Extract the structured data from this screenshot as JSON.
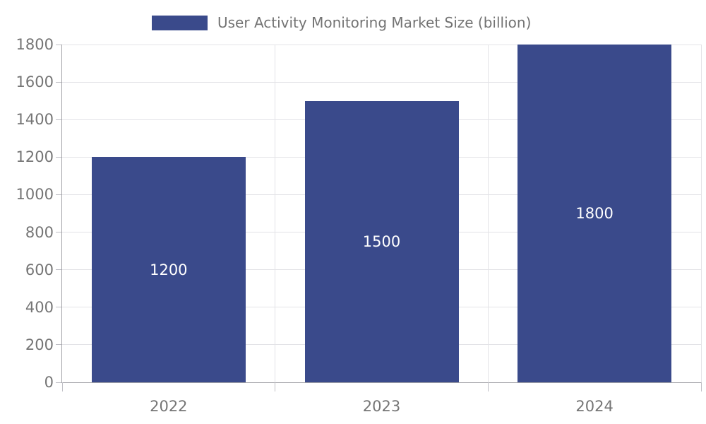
{
  "legend": {
    "label": "User Activity Monitoring Market Size (billion)"
  },
  "chart_data": {
    "type": "bar",
    "title": "User Activity Monitoring Market Size (billion)",
    "categories": [
      "2022",
      "2023",
      "2024"
    ],
    "values": [
      1200,
      1500,
      1800
    ],
    "value_labels": [
      "1200",
      "1500",
      "1800"
    ],
    "value_label_position": "inside-center",
    "xlabel": "",
    "ylabel": "",
    "ylim": [
      0,
      1800
    ],
    "yticks": [
      0,
      200,
      400,
      600,
      800,
      1000,
      1200,
      1400,
      1600,
      1800
    ],
    "grid": true,
    "legend_position": "top-center"
  },
  "colors": {
    "bar": "#3A4A8B",
    "grid": "#E3E3E7",
    "spine": "#A3A3A8",
    "tick": "#BFBFC5",
    "axis_text": "#757575",
    "legend_text": "#737373",
    "value_text": "#FFFFFF",
    "background": "#FFFFFF"
  }
}
